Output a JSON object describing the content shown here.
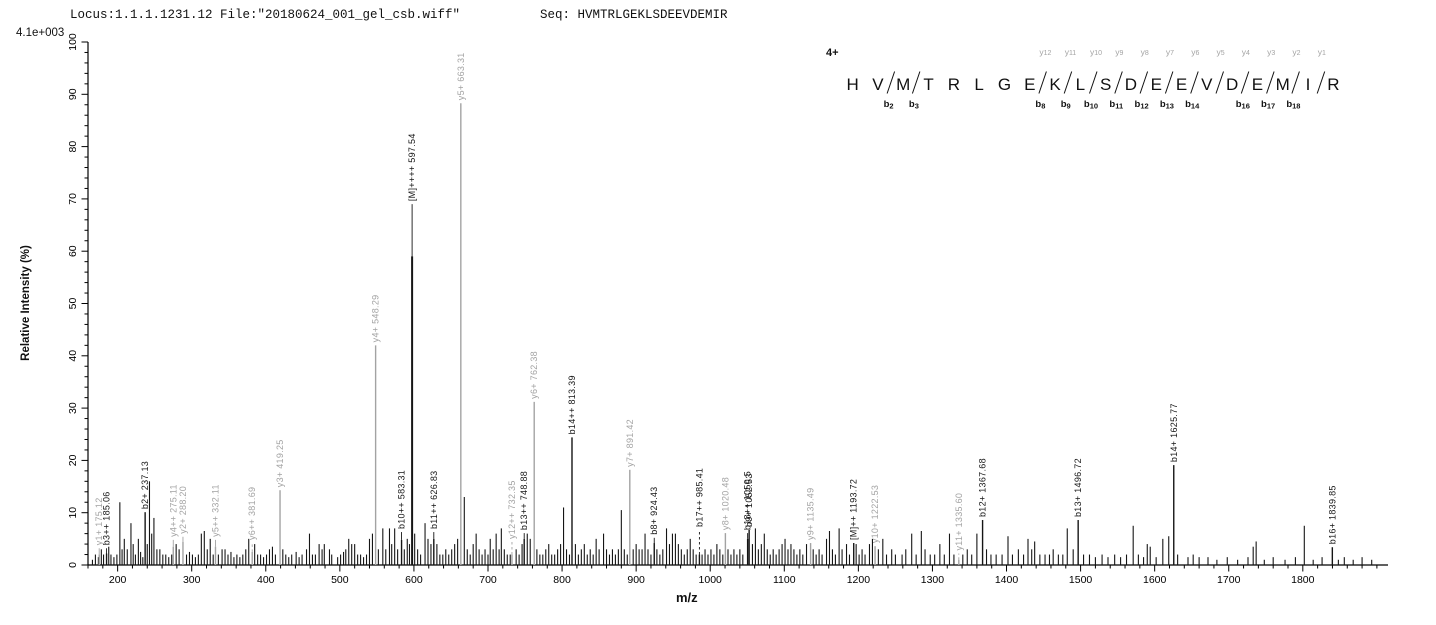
{
  "header": {
    "locus": "Locus:1.1.1.1231.12 File:\"20180624_001_gel_csb.wiff\"",
    "seq": "Seq: HVMTRLGEKLSDEEVDEMIR"
  },
  "peptide": {
    "charge": "4+",
    "residues": "HVMTRLGEKLSDEEVDEMIR",
    "fragments": [
      {
        "after": 2,
        "b": 2
      },
      {
        "after": 3,
        "b": 3
      },
      {
        "after": 8,
        "y": 12,
        "b": 8
      },
      {
        "after": 9,
        "y": 11,
        "b": 9
      },
      {
        "after": 10,
        "y": 10,
        "b": 10
      },
      {
        "after": 11,
        "y": 9,
        "b": 11
      },
      {
        "after": 12,
        "y": 8,
        "b": 12
      },
      {
        "after": 13,
        "y": 7,
        "b": 13
      },
      {
        "after": 14,
        "y": 6,
        "b": 14
      },
      {
        "after": 15,
        "y": 5
      },
      {
        "after": 16,
        "y": 4,
        "b": 16
      },
      {
        "after": 17,
        "y": 3,
        "b": 17
      },
      {
        "after": 18,
        "y": 2,
        "b": 18
      },
      {
        "after": 19,
        "y": 1
      }
    ]
  },
  "colors": {
    "b_series": "#151515",
    "y_series": "#a3a3a3",
    "axis": "#000000",
    "background": "#ffffff"
  },
  "chart_data": {
    "type": "mass_spectrum_stick",
    "title": "",
    "xlabel": "m/z",
    "ylabel": "Relative  Intensity (%)",
    "y_scale_label": "4.1e+003",
    "xlim": [
      160,
      1915
    ],
    "ylim": [
      0,
      100
    ],
    "x_ticks": {
      "label_start": 200,
      "label_end": 1800,
      "major_step": 100,
      "minor_step": 20
    },
    "y_ticks": {
      "major_step": 10,
      "minor_step": 2
    },
    "grid": false,
    "annotated_peaks": [
      {
        "label": "y1+ 175.12",
        "ion": "y1",
        "mz": 175.12,
        "pct": 2,
        "leader_to": 3.2,
        "series": "y"
      },
      {
        "label": "b3++ 185.06",
        "ion": "b3",
        "mz": 185.06,
        "pct": 2.2,
        "leader_to": 3.2,
        "series": "b"
      },
      {
        "label": "b2+ 237.13",
        "ion": "b2",
        "mz": 237.13,
        "pct": 10.1,
        "series": "b"
      },
      {
        "label": "y4++ 275.11",
        "ion": "y4",
        "mz": 275.11,
        "pct": 3.5,
        "leader_to": 4.8,
        "series": "y"
      },
      {
        "label": "y2+ 288.20",
        "ion": "y2",
        "mz": 288.2,
        "pct": 4.4,
        "leader_to": 5.4,
        "series": "y"
      },
      {
        "label": "y5++ 332.11",
        "ion": "y5",
        "mz": 332.11,
        "pct": 3.5,
        "leader_to": 4.8,
        "series": "y"
      },
      {
        "label": "y6++ 381.69",
        "ion": "y6",
        "mz": 381.69,
        "pct": 2.5,
        "leader_to": 4.2,
        "dashed": true,
        "series": "y"
      },
      {
        "label": "y3+ 419.25",
        "ion": "y3",
        "mz": 419.25,
        "pct": 14.3,
        "series": "y"
      },
      {
        "label": "y4+ 548.29",
        "ion": "y4",
        "mz": 548.29,
        "pct": 42,
        "series": "y"
      },
      {
        "label": "b10++ 583.31",
        "ion": "b10",
        "mz": 583.31,
        "pct": 4.8,
        "leader_to": 6.3,
        "series": "b"
      },
      {
        "label": "[M]++++ 597.54",
        "ion": "M",
        "mz": 597.54,
        "pct": 59,
        "leader_to": 69,
        "series": "precursor",
        "width": 2
      },
      {
        "label": "b11++ 626.83",
        "ion": "b11",
        "mz": 626.83,
        "pct": 5,
        "leader_to": 6.3,
        "series": "b"
      },
      {
        "label": "y5+ 663.31",
        "ion": "y5",
        "mz": 663.31,
        "pct": 88.3,
        "series": "y"
      },
      {
        "label": "y12++ 732.35",
        "ion": "y12",
        "mz": 732.35,
        "pct": 2,
        "leader_to": 4.4,
        "dashed": true,
        "series": "y"
      },
      {
        "label": "b13++ 748.88",
        "ion": "b13",
        "mz": 748.88,
        "pct": 5,
        "leader_to": 6.1,
        "series": "b"
      },
      {
        "label": "y6+ 762.38",
        "ion": "y6",
        "mz": 762.38,
        "pct": 31.2,
        "series": "y"
      },
      {
        "label": "b14++ 813.39",
        "ion": "b14",
        "mz": 813.39,
        "pct": 24.4,
        "series": "b"
      },
      {
        "label": "y7+ 891.42",
        "ion": "y7",
        "mz": 891.42,
        "pct": 18.2,
        "series": "y"
      },
      {
        "label": "b8+ 924.43",
        "ion": "b8",
        "mz": 924.43,
        "pct": 4.2,
        "leader_to": 5.2,
        "series": "b"
      },
      {
        "label": "b17++ 985.41",
        "ion": "b17",
        "mz": 985.41,
        "pct": 2,
        "leader_to": 6.7,
        "dashed": true,
        "series": "b"
      },
      {
        "label": "y8+ 1020.48",
        "ion": "y8",
        "mz": 1020.48,
        "pct": 6.1,
        "series": "y"
      },
      {
        "label": "b18++ 1050.5",
        "ion": "b18",
        "mz": 1050.5,
        "pct": 5,
        "leader_to": 6.1,
        "series": "b"
      },
      {
        "label": "b9+ 1052.53",
        "ion": "b9",
        "mz": 1052.53,
        "pct": 6.7,
        "series": "b"
      },
      {
        "label": "y9+ 1135.49",
        "ion": "y9",
        "mz": 1135.49,
        "pct": 4.2,
        "series": "y"
      },
      {
        "label": "[M]++ 1193.72",
        "ion": "M",
        "mz": 1193.72,
        "pct": 4.2,
        "series": "precursor"
      },
      {
        "label": "y10+ 1222.53",
        "ion": "y10",
        "mz": 1222.53,
        "pct": 3.6,
        "series": "y"
      },
      {
        "label": "y11+ 1335.60",
        "ion": "y11",
        "mz": 1335.6,
        "pct": 1,
        "leader_to": 2.2,
        "dashed": true,
        "series": "y"
      },
      {
        "label": "b12+ 1367.68",
        "ion": "b12",
        "mz": 1367.68,
        "pct": 8.6,
        "series": "b"
      },
      {
        "label": "b13+ 1496.72",
        "ion": "b13",
        "mz": 1496.72,
        "pct": 8.6,
        "series": "b"
      },
      {
        "label": "b14+ 1625.77",
        "ion": "b14",
        "mz": 1625.77,
        "pct": 19.1,
        "series": "b"
      },
      {
        "label": "b16+ 1839.85",
        "ion": "b16",
        "mz": 1839.85,
        "pct": 3.4,
        "series": "b"
      }
    ],
    "noise_peaks": [
      [
        166,
        1
      ],
      [
        170,
        2
      ],
      [
        174,
        1.5
      ],
      [
        178,
        3
      ],
      [
        181,
        2
      ],
      [
        188,
        3.5
      ],
      [
        191,
        2
      ],
      [
        195,
        1.5
      ],
      [
        199,
        2
      ],
      [
        203,
        12
      ],
      [
        206,
        3
      ],
      [
        209,
        5
      ],
      [
        213,
        3
      ],
      [
        218,
        8
      ],
      [
        221,
        4
      ],
      [
        224,
        2
      ],
      [
        228,
        5
      ],
      [
        231,
        2.5
      ],
      [
        234,
        1.5
      ],
      [
        240,
        4
      ],
      [
        243,
        16
      ],
      [
        246,
        6
      ],
      [
        249,
        9
      ],
      [
        253,
        3
      ],
      [
        257,
        3
      ],
      [
        261,
        2
      ],
      [
        265,
        2
      ],
      [
        269,
        1.5
      ],
      [
        273,
        2
      ],
      [
        279,
        4
      ],
      [
        283,
        3
      ],
      [
        293,
        2
      ],
      [
        297,
        2.5
      ],
      [
        301,
        2
      ],
      [
        305,
        1.5
      ],
      [
        309,
        2
      ],
      [
        313,
        6
      ],
      [
        317,
        6.5
      ],
      [
        321,
        3
      ],
      [
        325,
        5
      ],
      [
        329,
        2
      ],
      [
        336,
        2
      ],
      [
        341,
        3
      ],
      [
        345,
        3
      ],
      [
        349,
        2
      ],
      [
        353,
        2.5
      ],
      [
        357,
        1.5
      ],
      [
        361,
        2
      ],
      [
        365,
        1.5
      ],
      [
        369,
        2
      ],
      [
        373,
        3
      ],
      [
        377,
        5
      ],
      [
        385,
        4
      ],
      [
        389,
        2
      ],
      [
        393,
        2
      ],
      [
        397,
        1.5
      ],
      [
        401,
        2
      ],
      [
        405,
        3
      ],
      [
        409,
        3.5
      ],
      [
        413,
        2
      ],
      [
        423,
        3
      ],
      [
        427,
        2
      ],
      [
        431,
        1.5
      ],
      [
        435,
        2
      ],
      [
        441,
        2.5
      ],
      [
        445,
        1.5
      ],
      [
        449,
        2
      ],
      [
        455,
        3
      ],
      [
        459,
        6
      ],
      [
        463,
        2
      ],
      [
        467,
        2
      ],
      [
        472,
        4
      ],
      [
        476,
        3
      ],
      [
        479,
        4
      ],
      [
        486,
        3
      ],
      [
        489,
        2
      ],
      [
        497,
        1.5
      ],
      [
        501,
        2
      ],
      [
        505,
        2.5
      ],
      [
        508,
        3
      ],
      [
        512,
        5
      ],
      [
        516,
        4
      ],
      [
        520,
        4
      ],
      [
        524,
        2
      ],
      [
        528,
        2
      ],
      [
        532,
        1.5
      ],
      [
        536,
        2
      ],
      [
        540,
        5
      ],
      [
        544,
        6
      ],
      [
        552,
        3
      ],
      [
        558,
        7
      ],
      [
        562,
        3
      ],
      [
        567,
        7
      ],
      [
        570,
        4
      ],
      [
        574,
        7
      ],
      [
        578,
        3
      ],
      [
        587,
        3
      ],
      [
        591,
        5
      ],
      [
        594,
        4
      ],
      [
        601,
        6
      ],
      [
        605,
        3
      ],
      [
        609,
        2
      ],
      [
        615,
        8
      ],
      [
        619,
        5
      ],
      [
        623,
        4
      ],
      [
        631,
        4
      ],
      [
        635,
        2
      ],
      [
        639,
        2
      ],
      [
        643,
        3
      ],
      [
        647,
        2
      ],
      [
        651,
        3
      ],
      [
        655,
        4
      ],
      [
        659,
        5
      ],
      [
        668,
        13
      ],
      [
        672,
        3
      ],
      [
        676,
        2
      ],
      [
        680,
        4
      ],
      [
        684,
        6
      ],
      [
        688,
        3
      ],
      [
        692,
        2
      ],
      [
        696,
        3
      ],
      [
        700,
        2
      ],
      [
        703,
        5
      ],
      [
        707,
        3
      ],
      [
        711,
        6
      ],
      [
        715,
        3
      ],
      [
        718,
        7
      ],
      [
        722,
        3
      ],
      [
        726,
        2
      ],
      [
        730,
        2
      ],
      [
        738,
        3
      ],
      [
        742,
        2
      ],
      [
        746,
        4
      ],
      [
        753,
        6
      ],
      [
        757,
        5
      ],
      [
        766,
        3
      ],
      [
        770,
        2
      ],
      [
        774,
        2
      ],
      [
        778,
        3
      ],
      [
        782,
        4
      ],
      [
        786,
        2
      ],
      [
        790,
        2
      ],
      [
        794,
        3
      ],
      [
        798,
        4
      ],
      [
        802,
        11
      ],
      [
        806,
        3
      ],
      [
        810,
        2
      ],
      [
        818,
        4
      ],
      [
        822,
        2
      ],
      [
        826,
        3
      ],
      [
        830,
        4
      ],
      [
        834,
        2
      ],
      [
        838,
        3
      ],
      [
        842,
        2
      ],
      [
        846,
        5
      ],
      [
        850,
        3
      ],
      [
        856,
        6
      ],
      [
        860,
        3
      ],
      [
        864,
        2
      ],
      [
        868,
        3
      ],
      [
        872,
        2
      ],
      [
        876,
        3
      ],
      [
        880,
        10.5
      ],
      [
        884,
        3
      ],
      [
        888,
        2
      ],
      [
        896,
        3
      ],
      [
        900,
        4
      ],
      [
        904,
        3
      ],
      [
        908,
        3
      ],
      [
        912,
        6
      ],
      [
        916,
        3
      ],
      [
        920,
        2
      ],
      [
        928,
        3
      ],
      [
        932,
        2
      ],
      [
        936,
        3
      ],
      [
        941,
        7
      ],
      [
        945,
        4
      ],
      [
        949,
        6
      ],
      [
        953,
        6
      ],
      [
        957,
        4
      ],
      [
        961,
        3
      ],
      [
        965,
        2
      ],
      [
        969,
        3
      ],
      [
        973,
        5
      ],
      [
        977,
        3
      ],
      [
        981,
        2
      ],
      [
        989,
        2
      ],
      [
        993,
        3
      ],
      [
        997,
        2
      ],
      [
        1001,
        3
      ],
      [
        1005,
        2
      ],
      [
        1009,
        4
      ],
      [
        1013,
        3
      ],
      [
        1017,
        2
      ],
      [
        1024,
        3
      ],
      [
        1028,
        2
      ],
      [
        1032,
        3
      ],
      [
        1036,
        2
      ],
      [
        1040,
        3
      ],
      [
        1044,
        2
      ],
      [
        1057,
        4
      ],
      [
        1061,
        7
      ],
      [
        1065,
        3
      ],
      [
        1069,
        4
      ],
      [
        1073,
        6
      ],
      [
        1077,
        3
      ],
      [
        1081,
        2
      ],
      [
        1085,
        3
      ],
      [
        1089,
        2
      ],
      [
        1093,
        3
      ],
      [
        1097,
        4
      ],
      [
        1101,
        5
      ],
      [
        1105,
        3
      ],
      [
        1109,
        4
      ],
      [
        1113,
        3
      ],
      [
        1117,
        2
      ],
      [
        1121,
        3
      ],
      [
        1125,
        2
      ],
      [
        1130,
        4
      ],
      [
        1139,
        3
      ],
      [
        1143,
        2
      ],
      [
        1147,
        3
      ],
      [
        1151,
        2
      ],
      [
        1157,
        5
      ],
      [
        1161,
        6.5
      ],
      [
        1165,
        3
      ],
      [
        1169,
        2
      ],
      [
        1174,
        7
      ],
      [
        1178,
        3
      ],
      [
        1184,
        4
      ],
      [
        1188,
        2
      ],
      [
        1197,
        4
      ],
      [
        1201,
        2
      ],
      [
        1205,
        3
      ],
      [
        1209,
        2
      ],
      [
        1215,
        4
      ],
      [
        1219,
        5
      ],
      [
        1227,
        3
      ],
      [
        1233,
        5
      ],
      [
        1238,
        2
      ],
      [
        1245,
        3
      ],
      [
        1250,
        2
      ],
      [
        1259,
        2
      ],
      [
        1264,
        3
      ],
      [
        1272,
        6
      ],
      [
        1278,
        2
      ],
      [
        1285,
        6.5
      ],
      [
        1290,
        3
      ],
      [
        1297,
        2
      ],
      [
        1303,
        2
      ],
      [
        1310,
        4
      ],
      [
        1316,
        2
      ],
      [
        1323,
        6
      ],
      [
        1329,
        2
      ],
      [
        1341,
        2
      ],
      [
        1347,
        3
      ],
      [
        1353,
        2
      ],
      [
        1360,
        6
      ],
      [
        1373,
        3
      ],
      [
        1379,
        2
      ],
      [
        1386,
        2
      ],
      [
        1394,
        2
      ],
      [
        1402,
        5.5
      ],
      [
        1408,
        2
      ],
      [
        1416,
        3
      ],
      [
        1423,
        2
      ],
      [
        1429,
        5
      ],
      [
        1434,
        3
      ],
      [
        1438,
        4.5
      ],
      [
        1445,
        2
      ],
      [
        1452,
        2
      ],
      [
        1458,
        2
      ],
      [
        1463,
        3
      ],
      [
        1470,
        2
      ],
      [
        1476,
        2
      ],
      [
        1482,
        7
      ],
      [
        1490,
        3
      ],
      [
        1504,
        2
      ],
      [
        1512,
        2
      ],
      [
        1520,
        1.5
      ],
      [
        1529,
        2
      ],
      [
        1537,
        1.5
      ],
      [
        1546,
        2
      ],
      [
        1554,
        1.5
      ],
      [
        1562,
        2
      ],
      [
        1571,
        7.5
      ],
      [
        1578,
        2
      ],
      [
        1585,
        1.5
      ],
      [
        1590,
        4
      ],
      [
        1594,
        3.5
      ],
      [
        1602,
        1.5
      ],
      [
        1611,
        5
      ],
      [
        1619,
        5.5
      ],
      [
        1631,
        2
      ],
      [
        1645,
        1.5
      ],
      [
        1652,
        2
      ],
      [
        1660,
        1.5
      ],
      [
        1672,
        1.5
      ],
      [
        1684,
        1
      ],
      [
        1698,
        1.5
      ],
      [
        1712,
        1
      ],
      [
        1726,
        1.5
      ],
      [
        1733,
        3.5
      ],
      [
        1737,
        4.5
      ],
      [
        1748,
        1
      ],
      [
        1760,
        1.5
      ],
      [
        1776,
        1
      ],
      [
        1790,
        1.5
      ],
      [
        1802,
        7.5
      ],
      [
        1814,
        1
      ],
      [
        1826,
        1.5
      ],
      [
        1848,
        1
      ],
      [
        1856,
        1.5
      ],
      [
        1868,
        1
      ],
      [
        1880,
        1.5
      ],
      [
        1893,
        1
      ]
    ]
  }
}
